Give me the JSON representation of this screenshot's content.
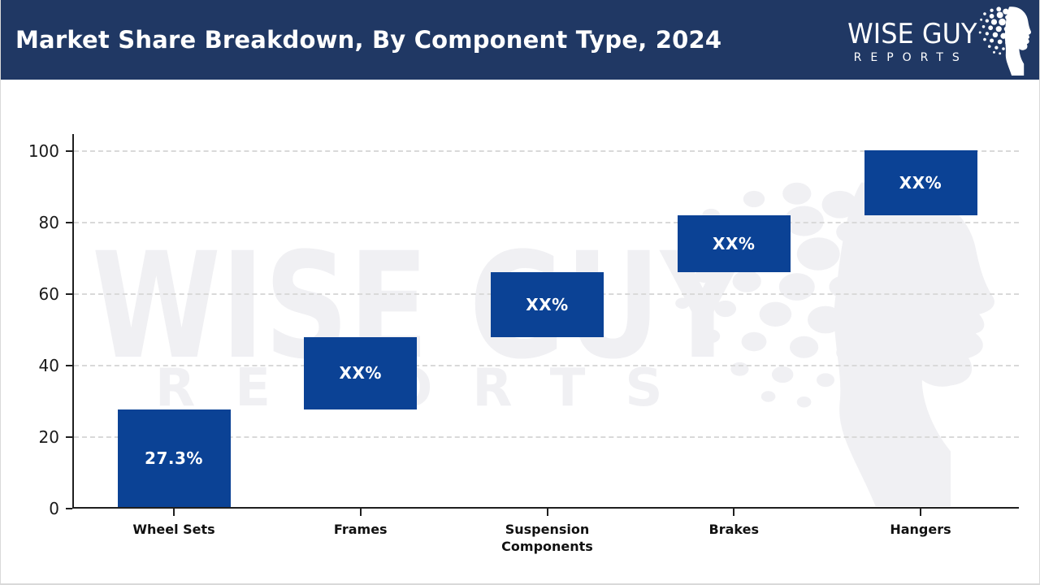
{
  "header": {
    "title": "Market Share Breakdown, By Component Type, 2024",
    "brand": {
      "name": "WISE GUY",
      "subtitle": "REPORTS"
    }
  },
  "watermark": {
    "line1": "WISE GUY",
    "line2": "REPORTS"
  },
  "chart_data": {
    "type": "bar",
    "variant": "waterfall",
    "title": "Market Share Breakdown, By Component Type, 2024",
    "categories": [
      "Wheel Sets",
      "Frames",
      "Suspension Components",
      "Brakes",
      "Hangers"
    ],
    "segments": [
      {
        "category": "Wheel Sets",
        "start": 0,
        "end": 27.3,
        "label": "27.3%"
      },
      {
        "category": "Frames",
        "start": 27.3,
        "end": 47.6,
        "label": "XX%"
      },
      {
        "category": "Suspension Components",
        "start": 47.6,
        "end": 65.8,
        "label": "XX%"
      },
      {
        "category": "Brakes",
        "start": 65.8,
        "end": 81.6,
        "label": "XX%"
      },
      {
        "category": "Hangers",
        "start": 81.6,
        "end": 99.8,
        "label": "XX%"
      }
    ],
    "y_ticks": [
      0,
      20,
      40,
      60,
      80,
      100
    ],
    "ylim": [
      0,
      104.8
    ],
    "xlabel": "",
    "ylabel": "",
    "grid": "horizontal-dashed",
    "legend": "none",
    "bar_color": "#0b4295"
  },
  "colors": {
    "header_bg": "#203864",
    "bar": "#0b4295",
    "axis": "#1f1f1f",
    "gridline": "#d9d9d9",
    "watermark": "#f0f0f3",
    "title_text": "#ffffff"
  }
}
